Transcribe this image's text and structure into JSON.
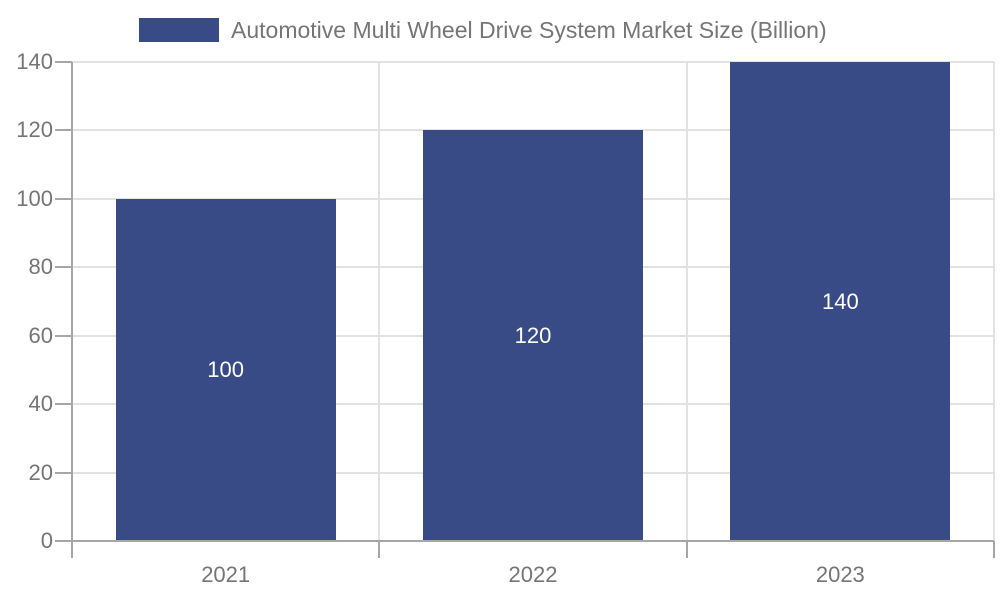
{
  "chart_data": {
    "type": "bar",
    "legend_label": "Automotive Multi Wheel Drive System Market Size (Billion)",
    "categories": [
      "2021",
      "2022",
      "2023"
    ],
    "values": [
      100,
      120,
      140
    ],
    "value_labels": [
      "100",
      "120",
      "140"
    ],
    "ylim": [
      0,
      140
    ],
    "yticks": [
      0,
      20,
      40,
      60,
      80,
      100,
      120,
      140
    ],
    "grid": true,
    "legend_position": "top",
    "colors": {
      "bar": "#394b87",
      "tick_text": "#757575",
      "value_text": "#ffffff",
      "gridline": "#e2e2e2",
      "axis": "#a6a6a6"
    }
  }
}
